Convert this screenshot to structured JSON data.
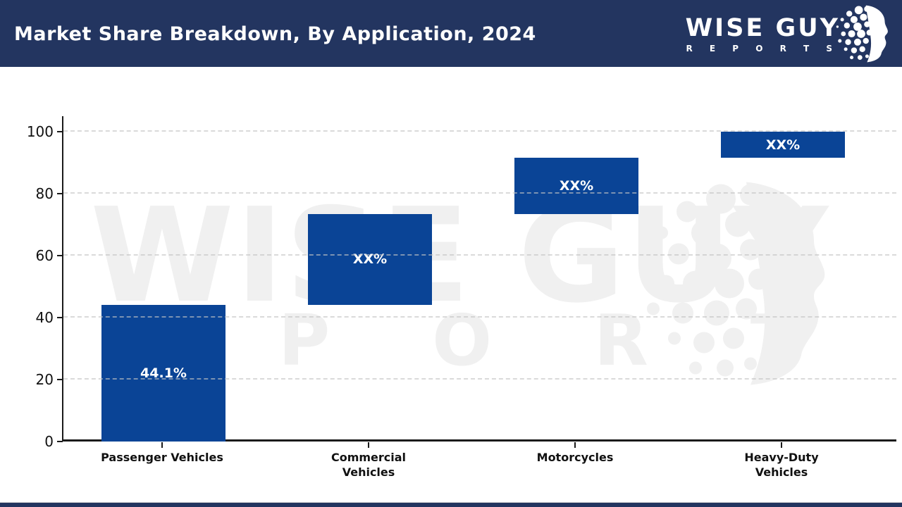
{
  "header": {
    "title": "Market Share Breakdown, By Application, 2024",
    "logo_line1": "WISE GUY",
    "logo_line2": "R E P O R T S"
  },
  "watermark": {
    "line1": "WISE GUY",
    "line2": "P O R T S"
  },
  "chart_data": {
    "type": "bar",
    "subtype": "waterfall",
    "title": "Market Share Breakdown, By Application, 2024",
    "categories": [
      "Passenger Vehicles",
      "Commercial Vehicles",
      "Motorcycles",
      "Heavy-Duty Vehicles"
    ],
    "category_lines": [
      [
        "Passenger Vehicles"
      ],
      [
        "Commercial",
        "Vehicles"
      ],
      [
        "Motorcycles"
      ],
      [
        "Heavy-Duty",
        "Vehicles"
      ]
    ],
    "bars": [
      {
        "category": "Passenger Vehicles",
        "start": 0,
        "end": 44.1,
        "label": "44.1%"
      },
      {
        "category": "Commercial Vehicles",
        "start": 44.1,
        "end": 73.5,
        "label": "XX%"
      },
      {
        "category": "Motorcycles",
        "start": 73.5,
        "end": 91.5,
        "label": "XX%"
      },
      {
        "category": "Heavy-Duty Vehicles",
        "start": 91.5,
        "end": 100,
        "label": "XX%"
      }
    ],
    "ylim": [
      0,
      100
    ],
    "yticks": [
      0,
      20,
      40,
      60,
      80,
      100
    ],
    "grid": "horizontal-dashed",
    "legend": "none",
    "bar_color": "#0a4496",
    "bar_label_color": "#ffffff"
  },
  "colors": {
    "header_bg": "#233560",
    "bar": "#0a4496",
    "axis": "#1a1a1a",
    "gridline": "#d9d9d9",
    "watermark": "#f0f0f0",
    "footer_bar": "#233560"
  }
}
